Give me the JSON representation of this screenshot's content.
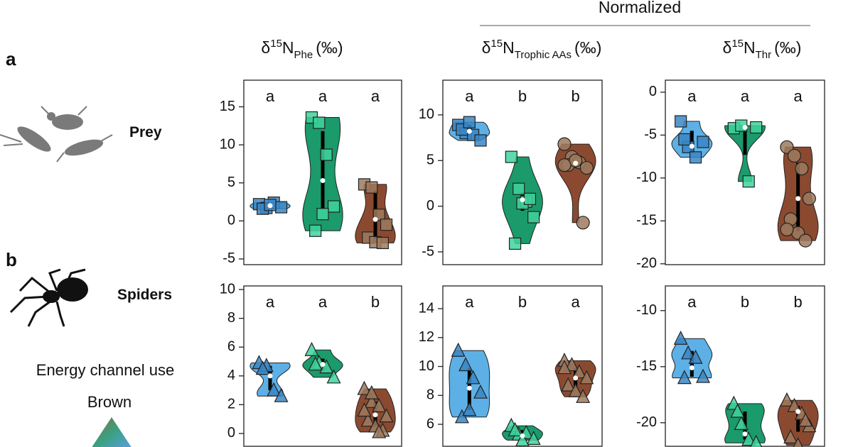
{
  "normalized_label": "Normalized",
  "column_headers": [
    {
      "symbol": "δ",
      "mass": "15",
      "element": "N",
      "subscript": "Phe",
      "unit": "(‰)"
    },
    {
      "symbol": "δ",
      "mass": "15",
      "element": "N",
      "subscript": "Trophic AAs",
      "unit": "(‰)"
    },
    {
      "symbol": "δ",
      "mass": "15",
      "element": "N",
      "subscript": "Thr",
      "unit": "(‰)"
    }
  ],
  "rows": [
    {
      "panel_letter": "a",
      "label": "Prey"
    },
    {
      "panel_letter": "b",
      "label": "Spiders"
    }
  ],
  "legend": {
    "title": "Energy channel use",
    "top_label": "Brown"
  },
  "chart_data": [
    {
      "type": "violin",
      "ylim": [
        -5.75,
        18.5
      ],
      "yticks": [
        -5,
        0,
        5,
        10,
        15
      ],
      "groups": [
        {
          "letter": "a",
          "color": "#5db0e6",
          "point_color": "#3a86c4",
          "marker": "square",
          "points": [
            2.2,
            1.7,
            2.4,
            1.8,
            1.6,
            2.1
          ],
          "median": 2.0,
          "box": [
            1.7,
            2.2
          ]
        },
        {
          "letter": "a",
          "color": "#1b9a6c",
          "point_color": "#3fd39c",
          "marker": "square",
          "points": [
            13.6,
            12.9,
            8.7,
            1.9,
            -1.3,
            0.9
          ],
          "median": 5.3,
          "box": [
            1.5,
            11.8
          ]
        },
        {
          "letter": "a",
          "color": "#8b4a30",
          "point_color": "#9d7a5e",
          "marker": "square",
          "points": [
            4.8,
            4.4,
            0.8,
            -0.5,
            -2.2,
            -2.8,
            -2.9
          ],
          "median": 0.2,
          "box": [
            -2.3,
            4.0
          ]
        }
      ]
    },
    {
      "type": "violin",
      "ylim": [
        -6.4,
        13.8
      ],
      "yticks": [
        -5,
        0,
        5,
        10
      ],
      "groups": [
        {
          "letter": "a",
          "color": "#5db0e6",
          "point_color": "#3a86c4",
          "marker": "square",
          "points": [
            8.9,
            8.0,
            7.8,
            7.2,
            8.4,
            9.2
          ],
          "median": 8.2,
          "box": [
            7.8,
            8.9
          ]
        },
        {
          "letter": "b",
          "color": "#1b9a6c",
          "point_color": "#3fd39c",
          "marker": "square",
          "points": [
            5.4,
            1.9,
            0.5,
            -1.2,
            -4.1,
            0.3,
            0.8
          ],
          "median": 0.7,
          "box": [
            -0.5,
            1.5
          ]
        },
        {
          "letter": "b",
          "color": "#8b4a30",
          "point_color": "#9d7a5e",
          "marker": "circle",
          "points": [
            6.8,
            5.4,
            4.8,
            4.2,
            4.5,
            5.0,
            -1.8,
            4.5
          ],
          "median": 4.7,
          "box": [
            4.2,
            5.2
          ]
        }
      ]
    },
    {
      "type": "violin",
      "ylim": [
        -20.1,
        1.4
      ],
      "yticks": [
        -20,
        -15,
        -10,
        -5,
        0
      ],
      "groups": [
        {
          "letter": "a",
          "color": "#5db0e6",
          "point_color": "#3a86c4",
          "marker": "square",
          "points": [
            -3.4,
            -6.4,
            -7.6,
            -5.8,
            -5.5
          ],
          "median": -6.3,
          "box": [
            -7.0,
            -4.5
          ]
        },
        {
          "letter": "a",
          "color": "#1b9a6c",
          "point_color": "#3fd39c",
          "marker": "square",
          "points": [
            -4.2,
            -3.9,
            -10.4,
            -4.1
          ],
          "median": -4.1,
          "box": [
            -7.3,
            -4.0
          ]
        },
        {
          "letter": "a",
          "color": "#8b4a30",
          "point_color": "#9d7a5e",
          "marker": "circle",
          "points": [
            -6.4,
            -7.4,
            -8.9,
            -12.4,
            -14.8,
            -16.4,
            -17.3,
            -16.0
          ],
          "median": -12.4,
          "box": [
            -16.2,
            -8.2
          ]
        }
      ]
    },
    {
      "type": "violin",
      "ylim": [
        -0.89,
        10.25
      ],
      "yticks": [
        0,
        2,
        4,
        6,
        8,
        10
      ],
      "groups": [
        {
          "letter": "a",
          "color": "#5db0e6",
          "point_color": "#3a86c4",
          "marker": "triangle",
          "points": [
            4.9,
            4.7,
            3.0,
            2.6,
            4.5
          ],
          "median": 4.0,
          "box": [
            3.0,
            4.7
          ]
        },
        {
          "letter": "a",
          "color": "#1b9a6c",
          "point_color": "#3fd39c",
          "marker": "triangle",
          "points": [
            5.8,
            4.9,
            4.6,
            3.9,
            4.8
          ],
          "median": 4.8,
          "box": [
            4.4,
            5.2
          ]
        },
        {
          "letter": "b",
          "color": "#8b4a30",
          "point_color": "#9d7a5e",
          "marker": "triangle",
          "points": [
            3.1,
            2.2,
            1.9,
            1.2,
            0.9,
            0.5,
            0.2,
            1.6,
            2.8,
            0.1
          ],
          "median": 1.3,
          "box": [
            0.5,
            2.2
          ]
        }
      ]
    },
    {
      "type": "violin",
      "ylim": [
        4.48,
        15.57
      ],
      "yticks": [
        6,
        8,
        10,
        12,
        14
      ],
      "groups": [
        {
          "letter": "a",
          "color": "#5db0e6",
          "point_color": "#3a86c4",
          "marker": "triangle",
          "points": [
            11.1,
            10.1,
            9.2,
            8.2,
            6.5,
            7.0
          ],
          "median": 8.5,
          "box": [
            7.0,
            9.9
          ]
        },
        {
          "letter": "b",
          "color": "#1b9a6c",
          "point_color": "#3fd39c",
          "marker": "triangle",
          "points": [
            5.9,
            5.3,
            5.4,
            5.0,
            5.6,
            4.9
          ],
          "median": 5.2,
          "box": [
            5.0,
            5.6
          ]
        },
        {
          "letter": "a",
          "color": "#8b4a30",
          "point_color": "#9d7a5e",
          "marker": "triangle",
          "points": [
            10.4,
            10.1,
            9.6,
            9.2,
            8.7,
            8.3,
            7.9,
            9.9
          ],
          "median": 9.2,
          "box": [
            8.5,
            9.9
          ]
        }
      ]
    },
    {
      "type": "violin",
      "ylim": [
        -22.1,
        -7.8
      ],
      "yticks": [
        -20,
        -15,
        -10
      ],
      "groups": [
        {
          "letter": "a",
          "color": "#5db0e6",
          "point_color": "#3a86c4",
          "marker": "triangle",
          "points": [
            -12.5,
            -13.8,
            -14.2,
            -15.9,
            -16.0
          ],
          "median": -15.1,
          "box": [
            -15.9,
            -13.6
          ]
        },
        {
          "letter": "b",
          "color": "#1b9a6c",
          "point_color": "#3fd39c",
          "marker": "triangle",
          "points": [
            -18.3,
            -20.1,
            -21.5,
            -21.8,
            -19.0
          ],
          "median": -21.0,
          "box": [
            -21.5,
            -19.0
          ]
        },
        {
          "letter": "b",
          "color": "#8b4a30",
          "point_color": "#9d7a5e",
          "marker": "triangle",
          "points": [
            -18.0,
            -18.5,
            -19.2,
            -20.3,
            -21.3,
            -22.0,
            -19.8
          ],
          "median": -19.0,
          "box": [
            -20.8,
            -18.5
          ]
        }
      ]
    }
  ]
}
